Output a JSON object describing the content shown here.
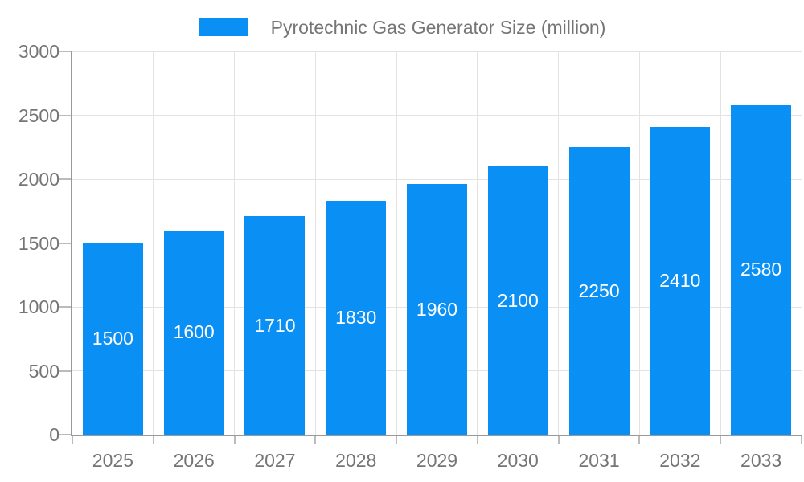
{
  "chart_data": {
    "type": "bar",
    "title": "Pyrotechnic Gas Generator Size (million)",
    "categories": [
      "2025",
      "2026",
      "2027",
      "2028",
      "2029",
      "2030",
      "2031",
      "2032",
      "2033"
    ],
    "values": [
      1500,
      1600,
      1710,
      1830,
      1960,
      2100,
      2250,
      2410,
      2580
    ],
    "xlabel": "",
    "ylabel": "",
    "ylim": [
      0,
      3000
    ],
    "yticks": [
      0,
      500,
      1000,
      1500,
      2000,
      2500,
      3000
    ],
    "grid": true,
    "legend_position": "top-center",
    "bar_labels_visible": true,
    "colors": {
      "bar": "#0a90f5",
      "bar_label": "#ffffff",
      "axis": "#999999",
      "grid": "#e3e3e3",
      "tick": "#bbbbbb",
      "text": "#757575"
    }
  },
  "legend": {
    "label": "Pyrotechnic Gas Generator Size (million)"
  }
}
